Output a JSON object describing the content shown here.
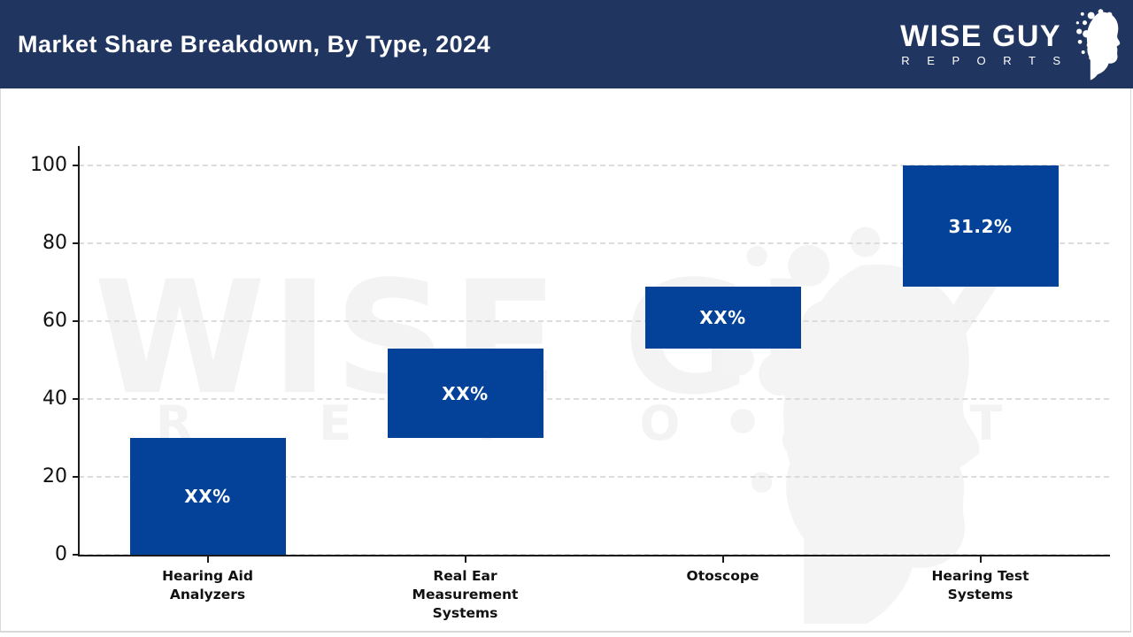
{
  "header": {
    "title": "Market Share Breakdown, By Type, 2024",
    "bg_color": "#213561",
    "logo": {
      "line1": "WISE GUY",
      "line2": "R E P O R T S",
      "head_icon": "dotted-face-profile"
    }
  },
  "watermark": {
    "line1": "WISE GUY",
    "line2": "R E P O R T S",
    "head_graphic": "dotted-face-profile"
  },
  "chart_data": {
    "type": "bar",
    "subtype": "waterfall",
    "title": "Market Share Breakdown, By Type, 2024",
    "categories": [
      "Hearing Aid Analyzers",
      "Real Ear Measurement Systems",
      "Otoscope",
      "Hearing Test Systems"
    ],
    "category_label_lines": [
      [
        "Hearing Aid",
        "Analyzers"
      ],
      [
        "Real Ear",
        "Measurement",
        "Systems"
      ],
      [
        "Otoscope"
      ],
      [
        "Hearing Test",
        "Systems"
      ]
    ],
    "bars": [
      {
        "category": "Hearing Aid Analyzers",
        "start": 0,
        "end": 30,
        "label": "XX%"
      },
      {
        "category": "Real Ear Measurement Systems",
        "start": 30,
        "end": 52.9,
        "label": "XX%"
      },
      {
        "category": "Otoscope",
        "start": 52.9,
        "end": 68.8,
        "label": "XX%"
      },
      {
        "category": "Hearing Test Systems",
        "start": 68.8,
        "end": 100,
        "label": "31.2%"
      }
    ],
    "xlabel": "",
    "ylabel": "",
    "yticks": [
      0,
      20,
      40,
      60,
      80,
      100
    ],
    "ylim": [
      0,
      105
    ],
    "grid": true,
    "gridline_style": "dashed",
    "gridline_color": "#dcdcdc",
    "bar_color": "#04429a",
    "bar_label_color": "#ffffff",
    "axis_color": "#1a1a1a",
    "legend_position": "none"
  }
}
